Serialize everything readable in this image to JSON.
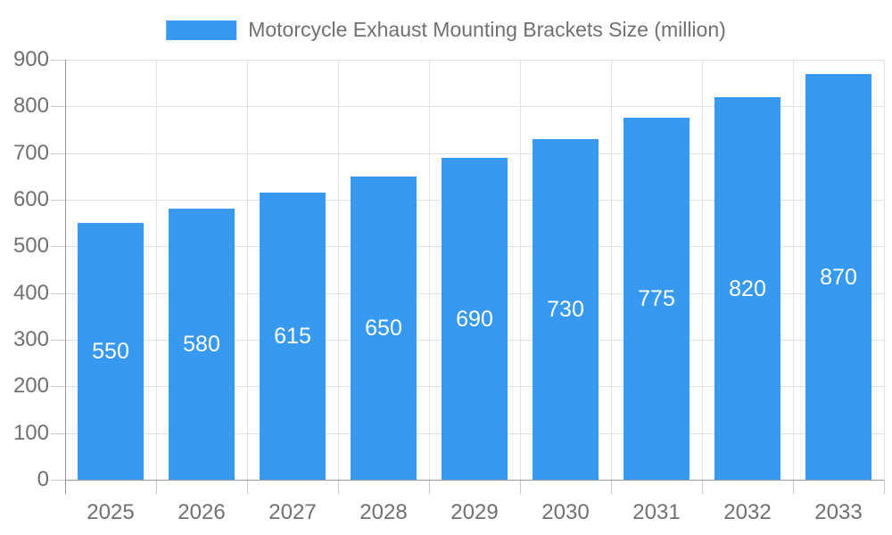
{
  "chart_data": {
    "type": "bar",
    "title": "Motorcycle Exhaust Mounting Brackets Size (million)",
    "legend_entries": [
      "Motorcycle Exhaust Mounting Brackets Size (million)"
    ],
    "legend_position": "top-center",
    "categories": [
      "2025",
      "2026",
      "2027",
      "2028",
      "2029",
      "2030",
      "2031",
      "2032",
      "2033"
    ],
    "values": [
      550,
      580,
      615,
      650,
      690,
      730,
      775,
      820,
      870
    ],
    "value_labels_shown_inside_bars": [
      550,
      580,
      615,
      650,
      690,
      730,
      775,
      820,
      870
    ],
    "xlabel": "",
    "ylabel": "",
    "ylim": [
      0,
      900
    ],
    "yticks": [
      0,
      100,
      200,
      300,
      400,
      500,
      600,
      700,
      800,
      900
    ],
    "grid": true,
    "colors": {
      "bar": "#3899F0",
      "bar_value_text": "#FFFFFF",
      "axis_text": "#707070",
      "axis_line": "#999999",
      "tick_line": "#C9C9C9",
      "grid_line": "#E2E2E2",
      "background": "#FFFFFF"
    }
  }
}
